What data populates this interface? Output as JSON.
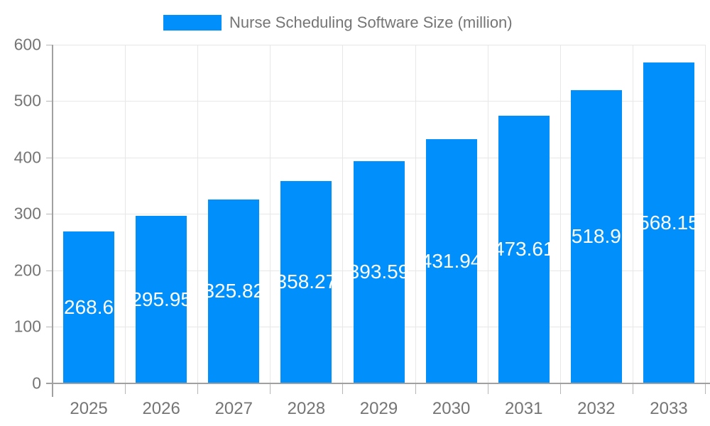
{
  "legend": {
    "label": "Nurse Scheduling Software Size (million)"
  },
  "colors": {
    "bar": "#008FFB",
    "grid": "#e7e7e7",
    "axis": "#a0a0a0",
    "tick": "#b6b6b6",
    "label_text": "#757575",
    "value_text": "#ffffff",
    "background": "#ffffff"
  },
  "chart_data": {
    "type": "bar",
    "title": "Nurse Scheduling Software Size (million)",
    "categories": [
      "2025",
      "2026",
      "2027",
      "2028",
      "2029",
      "2030",
      "2031",
      "2032",
      "2033"
    ],
    "values": [
      268.6,
      295.95,
      325.82,
      358.27,
      393.59,
      431.94,
      473.61,
      518.9,
      568.15
    ],
    "value_labels": [
      "268.6",
      "295.95",
      "325.82",
      "358.27",
      "393.59",
      "431.94",
      "473.61",
      "518.9",
      "568.15"
    ],
    "xlabel": "",
    "ylabel": "",
    "ylim": [
      0,
      600
    ],
    "yticks": [
      0,
      100,
      200,
      300,
      400,
      500,
      600
    ],
    "grid": true,
    "legend_position": "top",
    "value_label_position": "inside-center"
  }
}
